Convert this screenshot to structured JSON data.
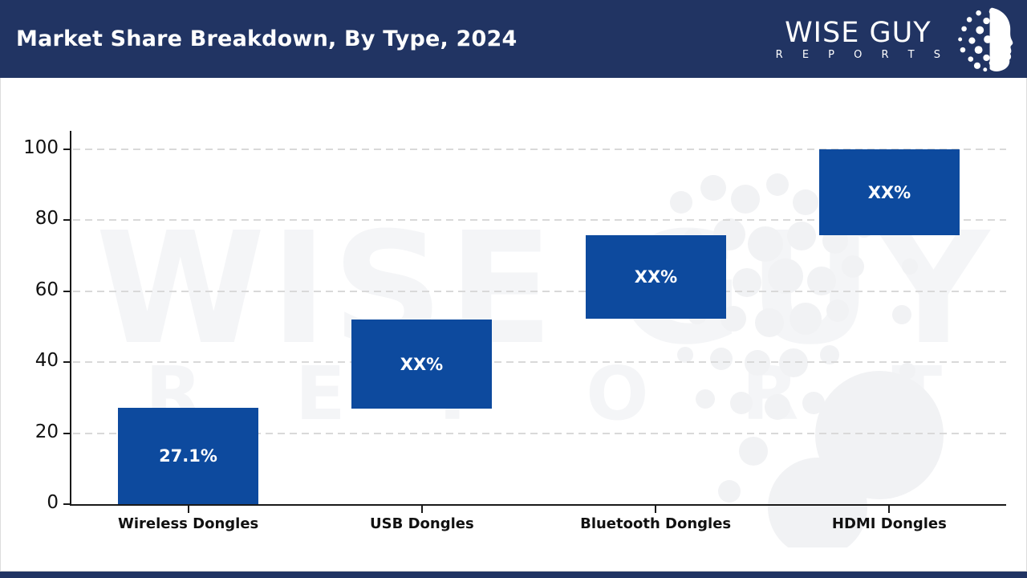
{
  "header": {
    "title": "Market Share Breakdown, By Type, 2024",
    "logo": {
      "line1": "WISE GUY",
      "line2": "R E P O R T S"
    }
  },
  "watermark": {
    "line1": "WISE GUY",
    "line2": "R E P O R T S"
  },
  "chart_data": {
    "type": "bar",
    "subtype": "waterfall",
    "title": "Market Share Breakdown, By Type, 2024",
    "categories": [
      "Wireless Dongles",
      "USB Dongles",
      "Bluetooth Dongles",
      "HDMI Dongles"
    ],
    "segments": [
      {
        "category": "Wireless Dongles",
        "start": 0,
        "end": 27.1,
        "label": "27.1%"
      },
      {
        "category": "USB Dongles",
        "start": 27.1,
        "end": 52.1,
        "label": "XX%"
      },
      {
        "category": "Bluetooth Dongles",
        "start": 52.1,
        "end": 75.7,
        "label": "XX%"
      },
      {
        "category": "HDMI Dongles",
        "start": 75.7,
        "end": 100,
        "label": "XX%"
      }
    ],
    "xlabel": "",
    "ylabel": "",
    "ylim": [
      0,
      100
    ],
    "yticks": [
      0,
      20,
      40,
      60,
      80,
      100
    ],
    "grid": "horizontal-dashed",
    "legend": "none",
    "colors": {
      "bar": "#0d4a9e",
      "grid": "#d9d9d9",
      "axis": "#1a1a1a",
      "bar_label_text": "#ffffff",
      "header_bg": "#213463",
      "watermark": "#f4f5f7"
    }
  }
}
